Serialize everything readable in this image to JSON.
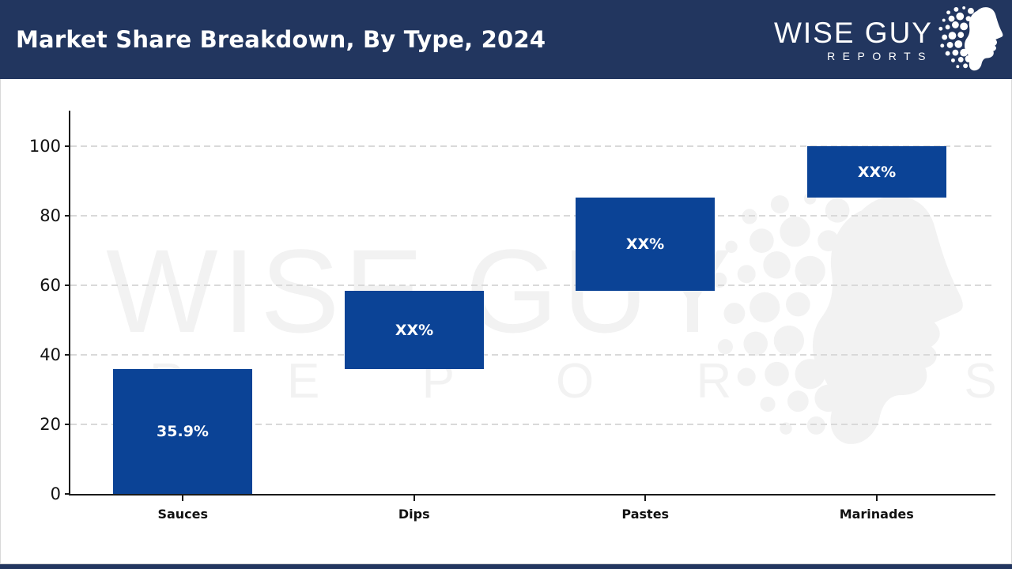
{
  "header": {
    "title": "Market Share Breakdown, By Type, 2024",
    "logo": {
      "name": "WISE GUY",
      "sub": "REPORTS"
    }
  },
  "watermark": {
    "line1": "WISE GUY",
    "line2": "R E P O R T S"
  },
  "colors": {
    "header_bg": "#22365f",
    "footer_bg": "#22365f",
    "bar": "#0b4396",
    "grid": "#d9d9d9",
    "axis": "#1a1a1a",
    "bar_label": "#ffffff",
    "watermark": "#f2f2f2"
  },
  "chart_data": {
    "type": "bar",
    "subtype": "waterfall",
    "title": "Market Share Breakdown, By Type, 2024",
    "xlabel": "",
    "ylabel": "",
    "categories": [
      "Sauces",
      "Dips",
      "Pastes",
      "Marinades"
    ],
    "segments": [
      {
        "category": "Sauces",
        "start": 0,
        "end": 35.9,
        "label": "35.9%"
      },
      {
        "category": "Dips",
        "start": 35.9,
        "end": 58.3,
        "label": "XX%"
      },
      {
        "category": "Pastes",
        "start": 58.3,
        "end": 85.2,
        "label": "XX%"
      },
      {
        "category": "Marinades",
        "start": 85.2,
        "end": 100,
        "label": "XX%"
      }
    ],
    "yticks": [
      0,
      20,
      40,
      60,
      80,
      100
    ],
    "ylim": [
      0,
      105
    ],
    "grid": true,
    "gridline_style": "dashed",
    "legend": false,
    "bar_color": "#0b4396"
  }
}
